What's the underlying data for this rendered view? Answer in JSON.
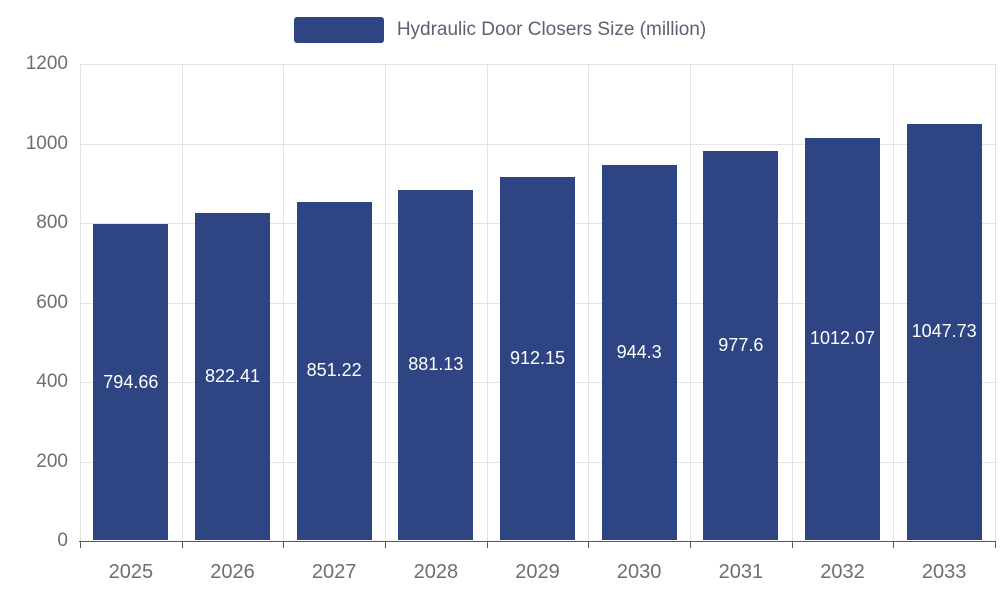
{
  "chart_data": {
    "type": "bar",
    "title": "Hydraulic Door Closers Size (million)",
    "series_name": "Hydraulic Door Closers Size (million)",
    "categories": [
      "2025",
      "2026",
      "2027",
      "2028",
      "2029",
      "2030",
      "2031",
      "2032",
      "2033"
    ],
    "values": [
      794.66,
      822.41,
      851.22,
      881.13,
      912.15,
      944.3,
      977.6,
      1012.07,
      1047.73
    ],
    "labels": [
      "794.66",
      "822.41",
      "851.22",
      "881.13",
      "912.15",
      "944.3",
      "977.6",
      "1012.07",
      "1047.73"
    ],
    "xlabel": "",
    "ylabel": "",
    "ylim": [
      0,
      1200
    ],
    "y_ticks": [
      0,
      200,
      400,
      600,
      800,
      1000,
      1200
    ],
    "grid": true,
    "legend_position": "top",
    "bar_color": "#2f4583",
    "value_label_color": "#ffffff",
    "axis_text_color": "#6d6d74"
  }
}
